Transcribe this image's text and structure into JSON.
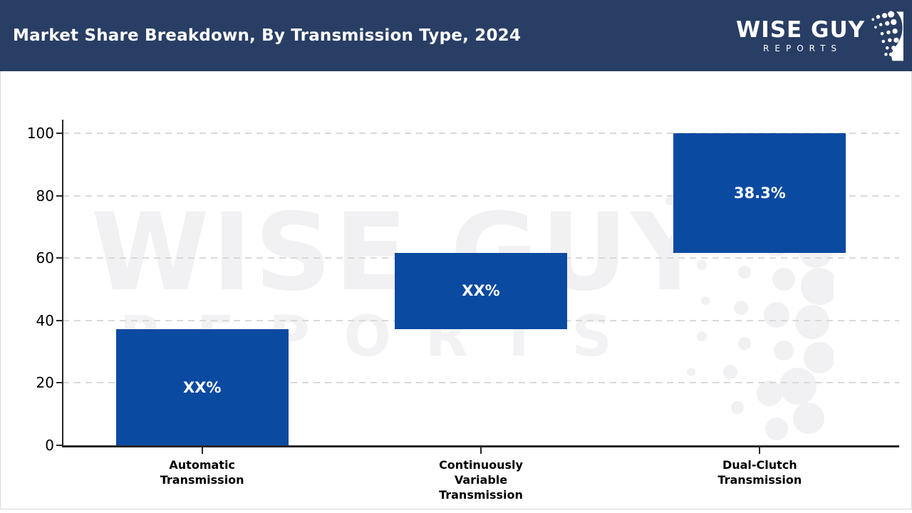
{
  "header": {
    "title": "Market Share Breakdown, By Transmission Type, 2024",
    "bg_color": "#293E64",
    "logo_line1": "WISE GUY",
    "logo_line2": "REPORTS"
  },
  "watermark": {
    "line1": "WISE GUY",
    "line2": "REPORTS"
  },
  "chart_data": {
    "type": "bar",
    "subtype": "waterfall-stacked",
    "title": "Market Share Breakdown, By Transmission Type, 2024",
    "categories": [
      "Automatic Transmission",
      "Continuously Variable Transmission",
      "Dual-Clutch Transmission"
    ],
    "category_lines": [
      [
        "Automatic",
        "Transmission"
      ],
      [
        "Continuously",
        "Variable",
        "Transmission"
      ],
      [
        "Dual-Clutch",
        "Transmission"
      ]
    ],
    "segments": [
      {
        "category": "Automatic Transmission",
        "start": 0,
        "end": 37.2,
        "value_label": "XX%"
      },
      {
        "category": "Continuously Variable Transmission",
        "start": 37.2,
        "end": 61.7,
        "value_label": "XX%"
      },
      {
        "category": "Dual-Clutch Transmission",
        "start": 61.7,
        "end": 100,
        "value_label": "38.3%"
      }
    ],
    "ylim": [
      0,
      100
    ],
    "yticks": [
      0,
      20,
      40,
      60,
      80,
      100
    ],
    "xlabel": "",
    "ylabel": "",
    "grid": "horizontal-dashed",
    "legend": "none",
    "colors": {
      "bar": "#0B4AA1",
      "bar_label": "#ffffff",
      "axis": "#262626",
      "grid": "#d9d9d9",
      "tick_label": "#000000"
    }
  }
}
